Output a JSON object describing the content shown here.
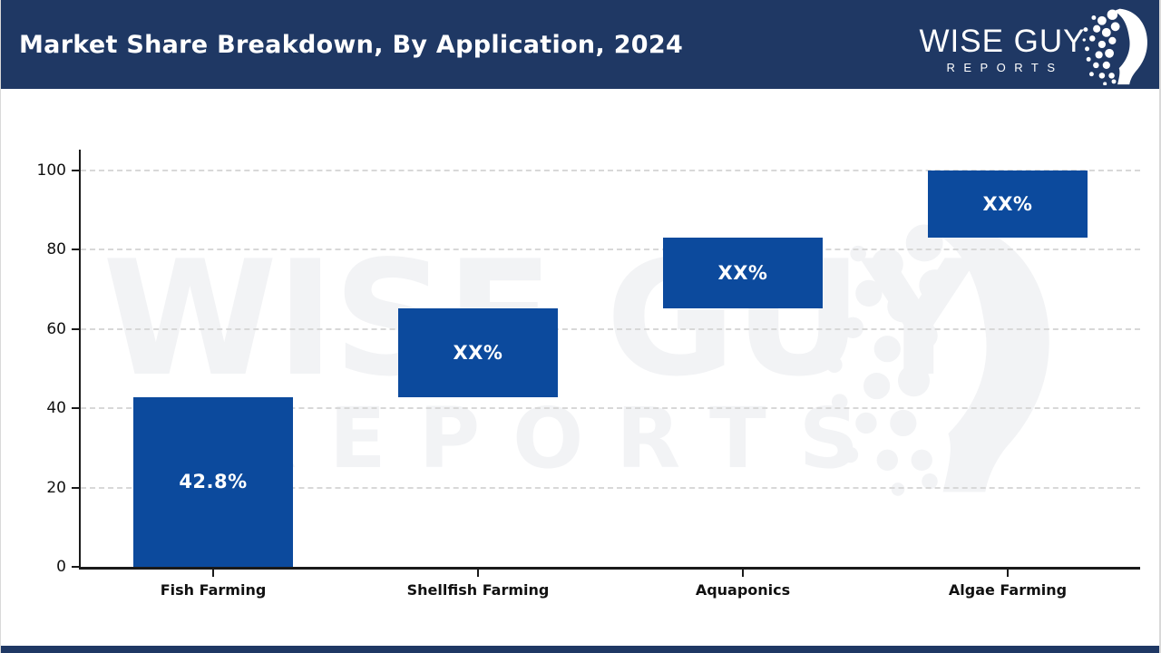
{
  "header": {
    "title": "Market Share Breakdown, By Application, 2024",
    "bg_color": "#1F3864",
    "logo": {
      "line1": "WISE GUY",
      "line2": "REPORTS"
    }
  },
  "watermark": {
    "line1": "WISE GUY",
    "line2": "REPORTS"
  },
  "chart_data": {
    "type": "bar",
    "variant": "floating-segment-waterfall",
    "title": "Market Share Breakdown, By Application, 2024",
    "categories": [
      "Fish Farming",
      "Shellfish Farming",
      "Aquaponics",
      "Algae Farming"
    ],
    "segments": [
      {
        "category": "Fish Farming",
        "start": 0,
        "end": 42.8,
        "label": "42.8%"
      },
      {
        "category": "Shellfish Farming",
        "start": 42.8,
        "end": 65.2,
        "label": "XX%"
      },
      {
        "category": "Aquaponics",
        "start": 65.2,
        "end": 83.0,
        "label": "XX%"
      },
      {
        "category": "Algae Farming",
        "start": 83.0,
        "end": 100,
        "label": "XX%"
      }
    ],
    "ylim": [
      0,
      100
    ],
    "yticks": [
      0,
      20,
      40,
      60,
      80,
      100
    ],
    "grid": "horizontal-dashed",
    "legend": "none",
    "bar_color": "#0C4A9D",
    "bar_label_color": "#FFFFFF",
    "axis_color": "#1a1a1a"
  }
}
